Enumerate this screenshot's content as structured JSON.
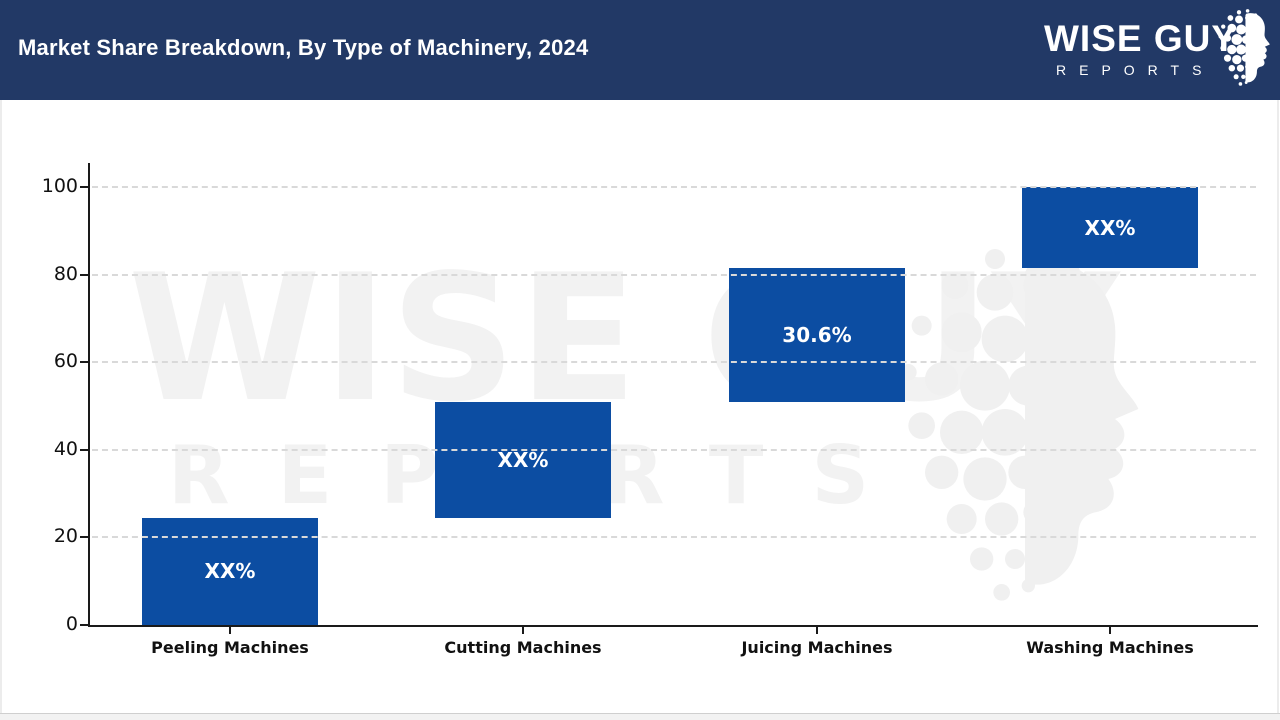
{
  "header": {
    "title": "Market Share Breakdown, By Type of Machinery, 2024",
    "logo": {
      "brand_line1": "WISE GUY",
      "brand_line2": "REPORTS"
    }
  },
  "watermark": {
    "line1": "WISE GUY",
    "line2": "REPORTS"
  },
  "colors": {
    "header_bg": "#223966",
    "bar": "#0C4DA2",
    "bar_label_text": "#FFFFFF",
    "grid": "#D9D9D9",
    "axis": "#1A1A1A",
    "tick_text": "#111111",
    "watermark": "#F2F2F2"
  },
  "chart_data": {
    "type": "bar",
    "subtype": "floating-segment-waterfall",
    "title": "Market Share Breakdown, By Type of Machinery, 2024",
    "categories": [
      "Peeling Machines",
      "Cutting Machines",
      "Juicing Machines",
      "Washing Machines"
    ],
    "segments": [
      {
        "category": "Peeling Machines",
        "start": 0,
        "end": 24.5,
        "label": "XX%"
      },
      {
        "category": "Cutting Machines",
        "start": 24.5,
        "end": 50.8,
        "label": "XX%"
      },
      {
        "category": "Juicing Machines",
        "start": 50.8,
        "end": 81.4,
        "label": "30.6%",
        "value": 30.6
      },
      {
        "category": "Washing Machines",
        "start": 81.4,
        "end": 100,
        "label": "XX%"
      }
    ],
    "yticks": [
      0,
      20,
      40,
      60,
      80,
      100
    ],
    "gridline_values": [
      20,
      40,
      60,
      80,
      100
    ],
    "ylim": [
      0,
      105.5
    ],
    "xlabel": "",
    "ylabel": "",
    "grid": "horizontal-dashed",
    "legend_position": "none"
  }
}
